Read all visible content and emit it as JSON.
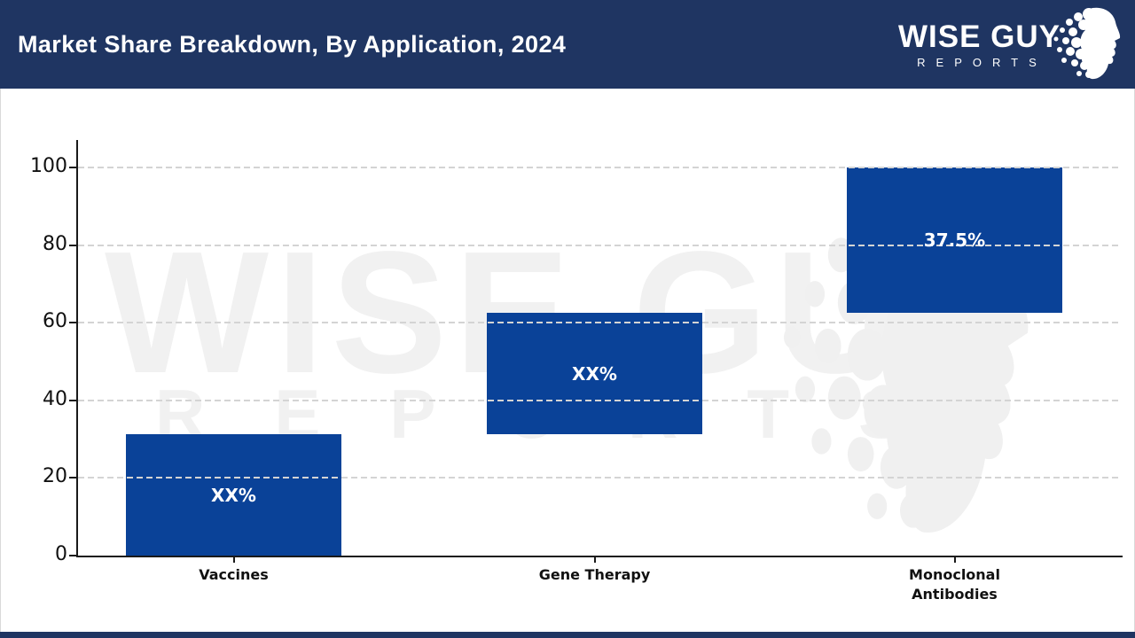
{
  "header": {
    "title": "Market Share Breakdown, By Application, 2024",
    "bg_color": "#1f3562",
    "logo": {
      "line1": "WISE GUY",
      "line2": "REPORTS"
    }
  },
  "watermark": {
    "line1": "WISE GUY",
    "line2": "REPORTS"
  },
  "chart_data": {
    "type": "bar",
    "subtype": "floating-waterfall",
    "title": "Market Share Breakdown, By Application, 2024",
    "categories": [
      "Vaccines",
      "Gene Therapy",
      "Monoclonal Antibodies"
    ],
    "segments": [
      {
        "category": "Vaccines",
        "start": 0,
        "end": 31.25,
        "label": "XX%"
      },
      {
        "category": "Gene Therapy",
        "start": 31.25,
        "end": 62.5,
        "label": "XX%"
      },
      {
        "category": "Monoclonal Antibodies",
        "start": 62.5,
        "end": 100,
        "label": "37.5%"
      }
    ],
    "bar_color": "#0a4298",
    "bar_label_color": "#ffffff",
    "ylim": [
      0,
      100
    ],
    "yticks": [
      0,
      20,
      40,
      60,
      80,
      100
    ],
    "grid": {
      "horizontal": true,
      "style": "dashed",
      "color": "#d4d4d4"
    },
    "legend": "none"
  },
  "footer": {
    "bg_color": "#1f3562"
  }
}
